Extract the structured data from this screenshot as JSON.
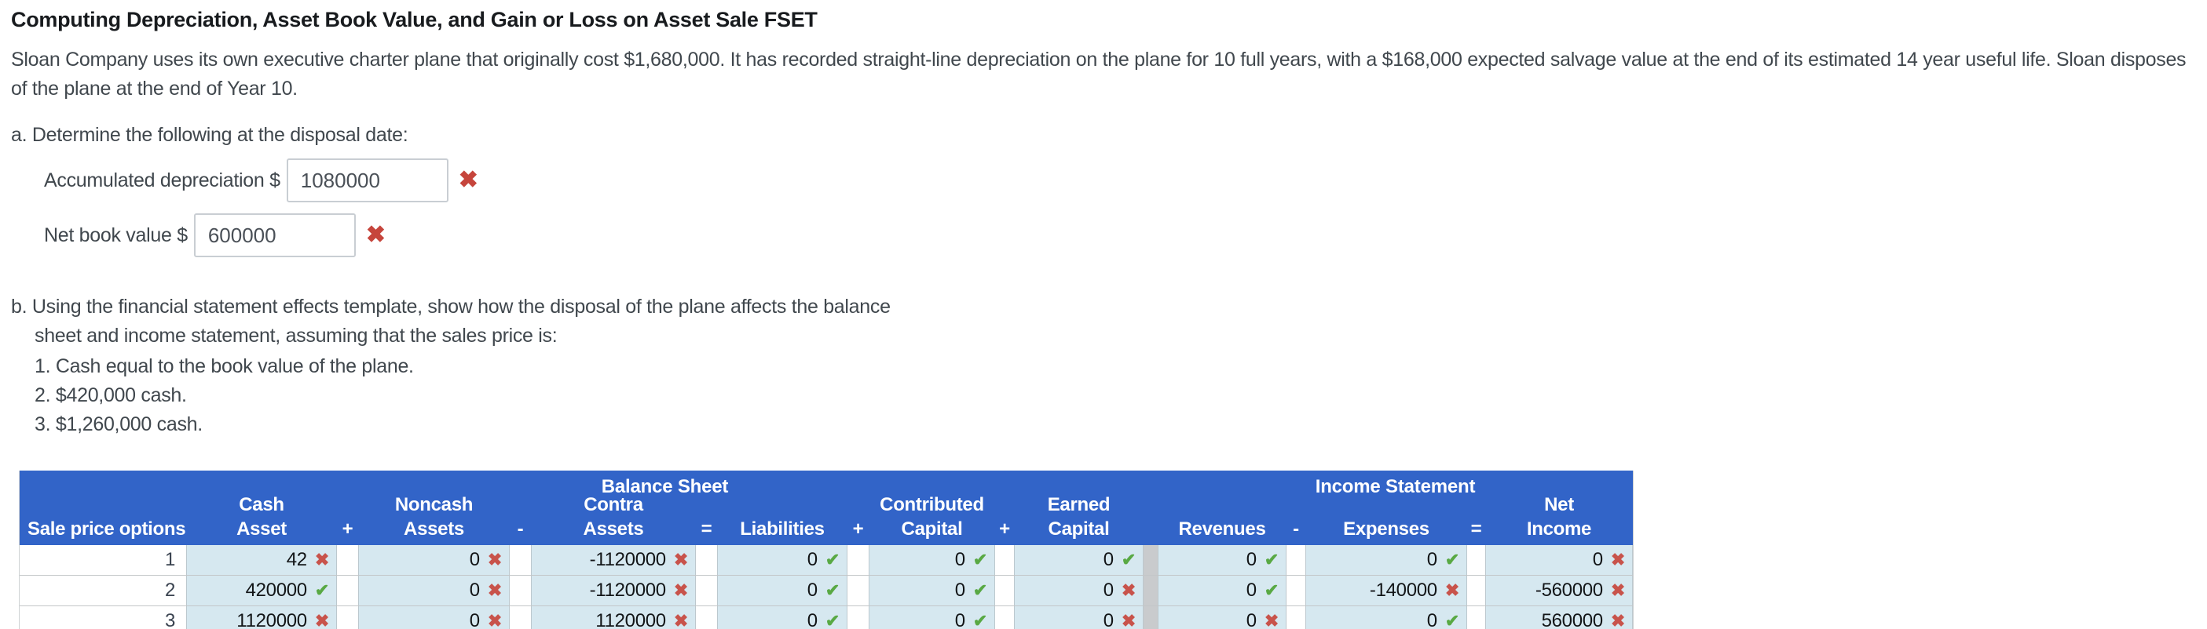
{
  "page": {
    "title": "Computing Depreciation, Asset Book Value, and Gain or Loss on Asset Sale FSET",
    "intro": "Sloan Company uses its own executive charter plane that originally cost $1,680,000. It has recorded straight-line depreciation on the plane for 10 full years, with a $168,000 expected salvage value at the end of its estimated 14 year useful life. Sloan disposes of the plane at the end of Year 10."
  },
  "part_a": {
    "prompt": "a. Determine the following at the disposal date:",
    "fields": [
      {
        "label": "Accumulated depreciation $",
        "value": "1080000",
        "status": "incorrect"
      },
      {
        "label": "Net book value $",
        "value": "600000",
        "status": "incorrect"
      }
    ]
  },
  "part_b": {
    "prompt": "b. Using the financial statement effects template, show how the disposal of the plane affects the balance sheet and income statement, assuming that the sales price is:",
    "items": [
      "1. Cash equal to the book value of the plane.",
      "2. $420,000 cash.",
      "3. $1,260,000 cash."
    ]
  },
  "icons": {
    "correct": "✔",
    "incorrect": "✖"
  },
  "colors": {
    "header_bg": "#3264c8",
    "header_text": "#ffffff",
    "cell_bg": "#d6e8f0",
    "correct": "#59a944",
    "incorrect": "#c8534b",
    "input_x": "#c6453c"
  },
  "table": {
    "group_headers": [
      {
        "label": "Balance Sheet"
      },
      {
        "label": "Income Statement"
      }
    ],
    "columns": [
      {
        "type": "label",
        "key": "sale_price_options",
        "label": "Sale price options"
      },
      {
        "type": "account",
        "key": "cash_asset",
        "line1": "Cash",
        "line2": "Asset"
      },
      {
        "type": "operator",
        "label": "+"
      },
      {
        "type": "account",
        "key": "noncash_assets",
        "line1": "Noncash",
        "line2": "Assets"
      },
      {
        "type": "operator",
        "label": "-"
      },
      {
        "type": "account",
        "key": "contra_assets",
        "line1": "Contra",
        "line2": "Assets"
      },
      {
        "type": "operator",
        "label": "="
      },
      {
        "type": "account",
        "key": "liabilities",
        "line1": "",
        "line2": "Liabilities"
      },
      {
        "type": "operator",
        "label": "+"
      },
      {
        "type": "account",
        "key": "contributed_capital",
        "line1": "Contributed",
        "line2": "Capital"
      },
      {
        "type": "operator",
        "label": "+"
      },
      {
        "type": "account",
        "key": "earned_capital",
        "line1": "Earned",
        "line2": "Capital"
      },
      {
        "type": "divider"
      },
      {
        "type": "account",
        "key": "revenues",
        "line1": "",
        "line2": "Revenues"
      },
      {
        "type": "operator",
        "label": "-"
      },
      {
        "type": "account",
        "key": "expenses",
        "line1": "",
        "line2": "Expenses"
      },
      {
        "type": "operator",
        "label": "="
      },
      {
        "type": "account",
        "key": "net_income",
        "line1": "Net",
        "line2": "Income"
      }
    ],
    "rows": [
      {
        "option": "1",
        "cells": [
          {
            "column": "cash_asset",
            "value": "42",
            "status": "incorrect"
          },
          {
            "column": "noncash_assets",
            "value": "0",
            "status": "incorrect"
          },
          {
            "column": "contra_assets",
            "value": "-1120000",
            "status": "incorrect"
          },
          {
            "column": "liabilities",
            "value": "0",
            "status": "correct"
          },
          {
            "column": "contributed_capital",
            "value": "0",
            "status": "correct"
          },
          {
            "column": "earned_capital",
            "value": "0",
            "status": "correct"
          },
          {
            "column": "revenues",
            "value": "0",
            "status": "correct"
          },
          {
            "column": "expenses",
            "value": "0",
            "status": "correct"
          },
          {
            "column": "net_income",
            "value": "0",
            "status": "incorrect"
          }
        ]
      },
      {
        "option": "2",
        "cells": [
          {
            "column": "cash_asset",
            "value": "420000",
            "status": "correct"
          },
          {
            "column": "noncash_assets",
            "value": "0",
            "status": "incorrect"
          },
          {
            "column": "contra_assets",
            "value": "-1120000",
            "status": "incorrect"
          },
          {
            "column": "liabilities",
            "value": "0",
            "status": "correct"
          },
          {
            "column": "contributed_capital",
            "value": "0",
            "status": "correct"
          },
          {
            "column": "earned_capital",
            "value": "0",
            "status": "incorrect"
          },
          {
            "column": "revenues",
            "value": "0",
            "status": "correct"
          },
          {
            "column": "expenses",
            "value": "-140000",
            "status": "incorrect"
          },
          {
            "column": "net_income",
            "value": "-560000",
            "status": "incorrect"
          }
        ]
      },
      {
        "option": "3",
        "cells": [
          {
            "column": "cash_asset",
            "value": "1120000",
            "status": "incorrect"
          },
          {
            "column": "noncash_assets",
            "value": "0",
            "status": "incorrect"
          },
          {
            "column": "contra_assets",
            "value": "1120000",
            "status": "incorrect"
          },
          {
            "column": "liabilities",
            "value": "0",
            "status": "correct"
          },
          {
            "column": "contributed_capital",
            "value": "0",
            "status": "correct"
          },
          {
            "column": "earned_capital",
            "value": "0",
            "status": "incorrect"
          },
          {
            "column": "revenues",
            "value": "0",
            "status": "incorrect"
          },
          {
            "column": "expenses",
            "value": "0",
            "status": "correct"
          },
          {
            "column": "net_income",
            "value": "560000",
            "status": "incorrect"
          }
        ]
      }
    ]
  }
}
